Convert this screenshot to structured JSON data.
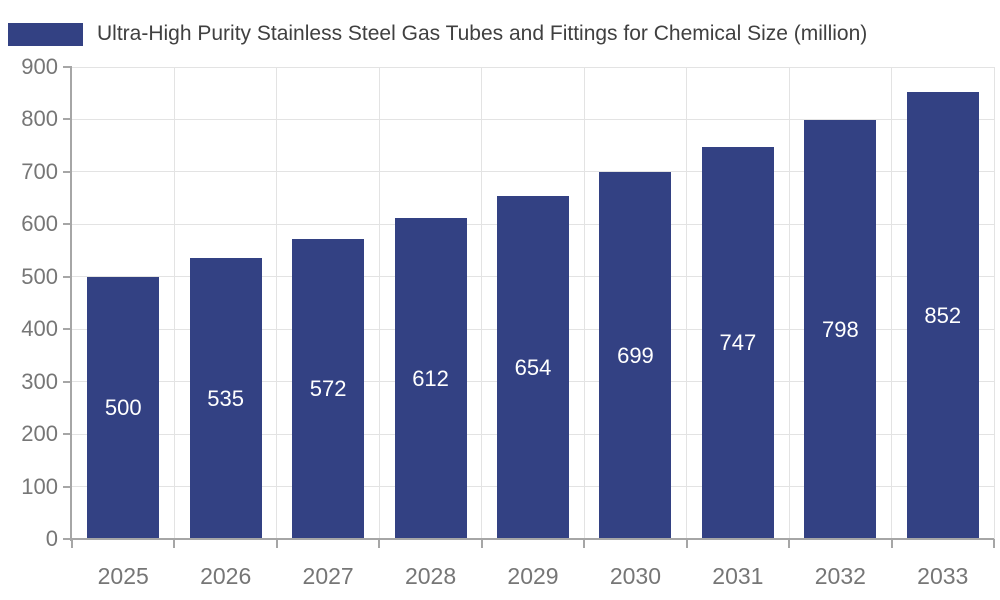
{
  "chart_data": {
    "type": "bar",
    "title": "Ultra-High Purity Stainless Steel Gas Tubes and Fittings for Chemical Size (million)",
    "categories": [
      "2025",
      "2026",
      "2027",
      "2028",
      "2029",
      "2030",
      "2031",
      "2032",
      "2033"
    ],
    "series": [
      {
        "name": "Ultra-High Purity Stainless Steel Gas Tubes and Fittings for Chemical Size (million)",
        "values": [
          500,
          535,
          572,
          612,
          654,
          699,
          747,
          798,
          852
        ]
      }
    ],
    "xlabel": "",
    "ylabel": "",
    "ylim": [
      0,
      900
    ],
    "ytick_step": 100,
    "ytick_labels": [
      "0",
      "100",
      "200",
      "300",
      "400",
      "500",
      "600",
      "700",
      "800",
      "900"
    ],
    "grid": true,
    "legend_position": "top-left",
    "value_label_position": "inside-center",
    "bar_color": "#334183",
    "value_label_color": "#ffffff"
  },
  "colors": {
    "background": "#ffffff",
    "title_text": "#404040",
    "axis_text": "#767676",
    "axis_line": "#a6a6a6",
    "grid_line": "#e3e3e3"
  }
}
